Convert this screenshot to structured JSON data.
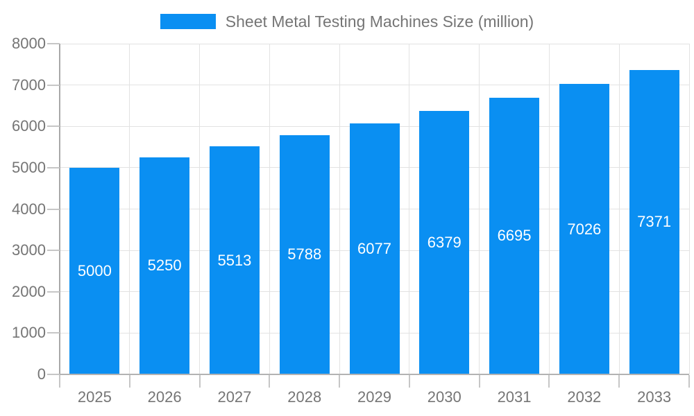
{
  "legend": {
    "label": "Sheet Metal Testing Machines Size (million)"
  },
  "chart_data": {
    "type": "bar",
    "title": "Sheet Metal Testing Machines Size (million)",
    "categories": [
      "2025",
      "2026",
      "2027",
      "2028",
      "2029",
      "2030",
      "2031",
      "2032",
      "2033"
    ],
    "values": [
      5000,
      5250,
      5513,
      5788,
      6077,
      6379,
      6695,
      7026,
      7371
    ],
    "xlabel": "",
    "ylabel": "",
    "ylim": [
      0,
      8000
    ],
    "y_ticks": [
      0,
      1000,
      2000,
      3000,
      4000,
      5000,
      6000,
      7000,
      8000
    ],
    "grid": true,
    "legend_position": "top-center",
    "value_labels": "inside-center"
  },
  "colors": {
    "bar": "#0A8FF2",
    "value_label": "#FFFFFF",
    "axis_text": "#757575",
    "gridline": "#E2E2E2",
    "axis_line": "#A8A8A8",
    "background": "#FFFFFF"
  }
}
